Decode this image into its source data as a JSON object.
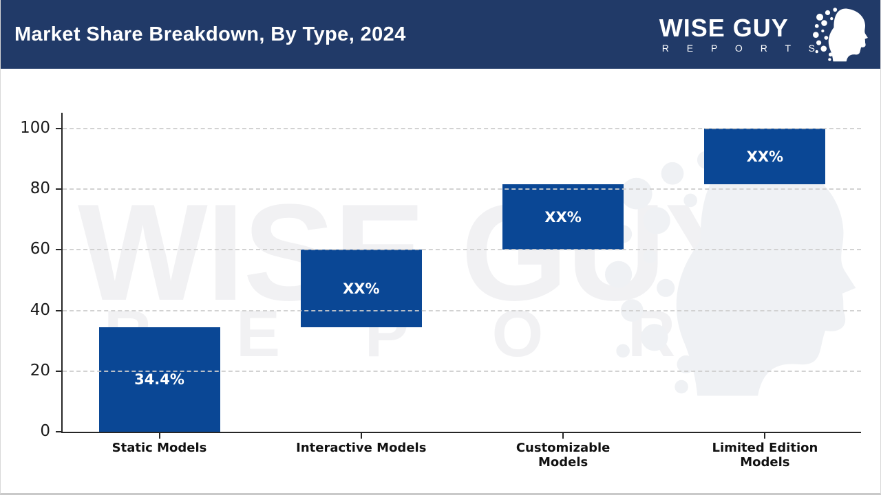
{
  "header": {
    "title": "Market Share Breakdown, By Type, 2024",
    "logo": {
      "name": "WISE GUY",
      "sub": "R E P O R T S"
    }
  },
  "watermark": {
    "line1": "WISE GUY",
    "line2": "R E P O R T S"
  },
  "colors": {
    "header_bg": "#213a68",
    "bar_blue": "#0a4795",
    "grid_gray": "#d2d2d2",
    "axis_dark": "#262626",
    "watermark_gray": "#f1f1f3",
    "label_white": "#ffffff"
  },
  "chart_data": {
    "type": "bar",
    "subtype": "waterfall",
    "title": "Market Share Breakdown, By Type, 2024",
    "categories": [
      "Static Models",
      "Interactive Models",
      "Customizable\nModels",
      "Limited Edition\nModels"
    ],
    "bars": [
      {
        "category": "Static Models",
        "start": 0,
        "end": 34.4,
        "label": "34.4%"
      },
      {
        "category": "Interactive Models",
        "start": 34.4,
        "end": 60,
        "label": "XX%"
      },
      {
        "category": "Customizable Models",
        "start": 60,
        "end": 81.6,
        "label": "XX%"
      },
      {
        "category": "Limited Edition Models",
        "start": 81.6,
        "end": 100,
        "label": "XX%"
      }
    ],
    "ylim": [
      0,
      100
    ],
    "yticks": [
      0,
      20,
      40,
      60,
      80,
      100
    ],
    "grid": "horizontal-dashed",
    "legend": null
  }
}
